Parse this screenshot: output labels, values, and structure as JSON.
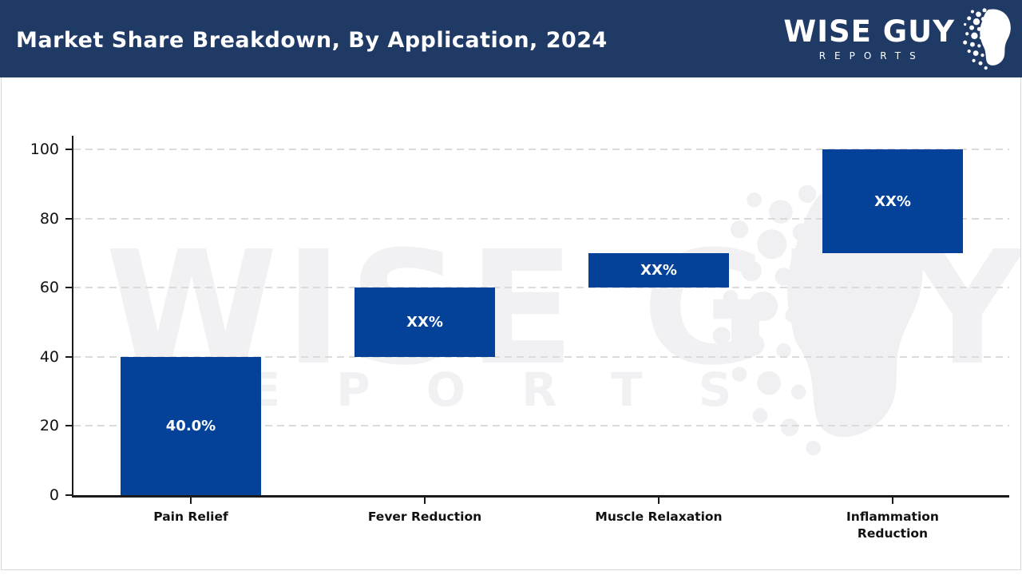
{
  "header": {
    "title": "Market Share Breakdown, By Application, 2024",
    "brand_line1": "WISE GUY",
    "brand_line2": "REPORTS",
    "background": "#203a66"
  },
  "watermark": {
    "line1": "WISE GUY",
    "line2": "REPORTS"
  },
  "chart_data": {
    "type": "bar",
    "subtype": "waterfall",
    "title": "Market Share Breakdown, By Application, 2024",
    "categories": [
      "Pain Relief",
      "Fever Reduction",
      "Muscle Relaxation",
      "Inflammation Reduction"
    ],
    "series": [
      {
        "name": "Market Share (%)",
        "values": [
          40,
          20,
          10,
          30
        ]
      }
    ],
    "segments": [
      {
        "category": "Pain Relief",
        "start": 0,
        "end": 40,
        "label": "40.0%"
      },
      {
        "category": "Fever Reduction",
        "start": 40,
        "end": 60,
        "label": "XX%"
      },
      {
        "category": "Muscle Relaxation",
        "start": 60,
        "end": 70,
        "label": "XX%"
      },
      {
        "category": "Inflammation Reduction",
        "start": 70,
        "end": 100,
        "label": "XX%"
      }
    ],
    "xlabel": "",
    "ylabel": "",
    "yticks": [
      0,
      20,
      40,
      60,
      80,
      100
    ],
    "ylim": [
      0,
      104
    ],
    "grid": "horizontal-dashed",
    "legend": "none",
    "bar_color": "#04429a",
    "bar_label_color": "#ffffff",
    "axis_color": "#1a1a1a",
    "gridline_color": "#dbdbdb"
  }
}
